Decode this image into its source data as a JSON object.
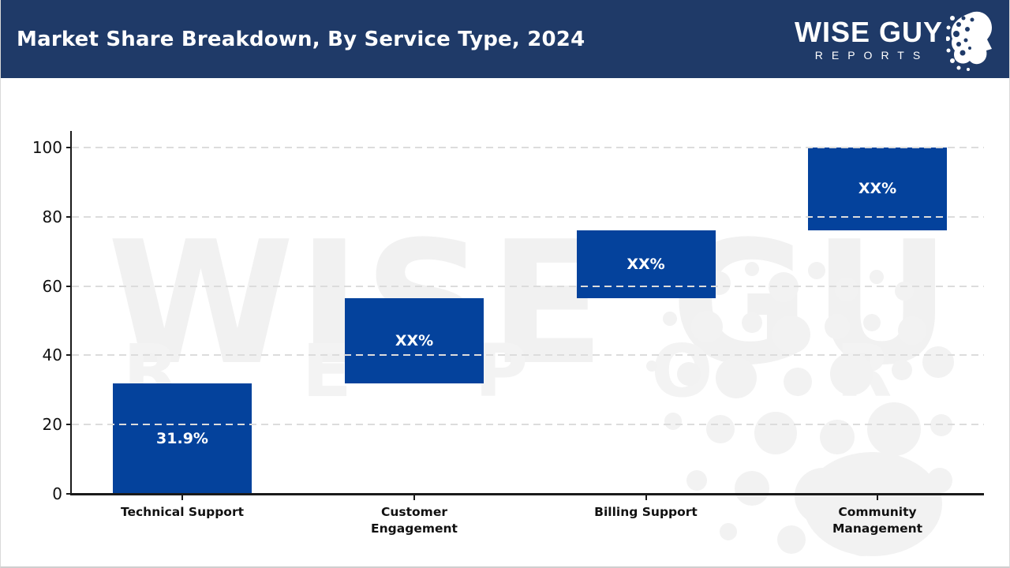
{
  "header": {
    "title": "Market Share Breakdown, By Service Type, 2024",
    "logo": {
      "primary": "WISE GUY",
      "secondary": "REPORTS"
    }
  },
  "watermark": {
    "line1": "WISE GU",
    "line2": "R E P O R T S"
  },
  "colors": {
    "header_bg": "#1F3A68",
    "bar": "#04429C",
    "grid": "#DCDCDC",
    "axis": "#1A1A1A",
    "bar_label": "#FFFFFF",
    "watermark": "#F2F2F2",
    "page_border": "#D9D9D9"
  },
  "chart_data": {
    "type": "bar",
    "subtype": "waterfall",
    "title": "Market Share Breakdown, By Service Type, 2024",
    "categories": [
      "Technical Support",
      "Customer Engagement",
      "Billing Support",
      "Community Management"
    ],
    "categories_display": [
      [
        "Technical Support"
      ],
      [
        "Customer",
        "Engagement"
      ],
      [
        "Billing Support"
      ],
      [
        "Community",
        "Management"
      ]
    ],
    "segments": [
      {
        "category": "Technical Support",
        "start": 0,
        "end": 31.9,
        "label": "31.9%"
      },
      {
        "category": "Customer Engagement",
        "start": 31.9,
        "end": 56.6,
        "label": "XX%"
      },
      {
        "category": "Billing Support",
        "start": 56.6,
        "end": 76.1,
        "label": "XX%"
      },
      {
        "category": "Community Management",
        "start": 76.1,
        "end": 100,
        "label": "XX%"
      }
    ],
    "y_ticks": [
      0,
      20,
      40,
      60,
      80,
      100
    ],
    "ylim": [
      0,
      100
    ],
    "xlabel": "",
    "ylabel": "",
    "grid": "horizontal-dashed",
    "legend": "none"
  }
}
